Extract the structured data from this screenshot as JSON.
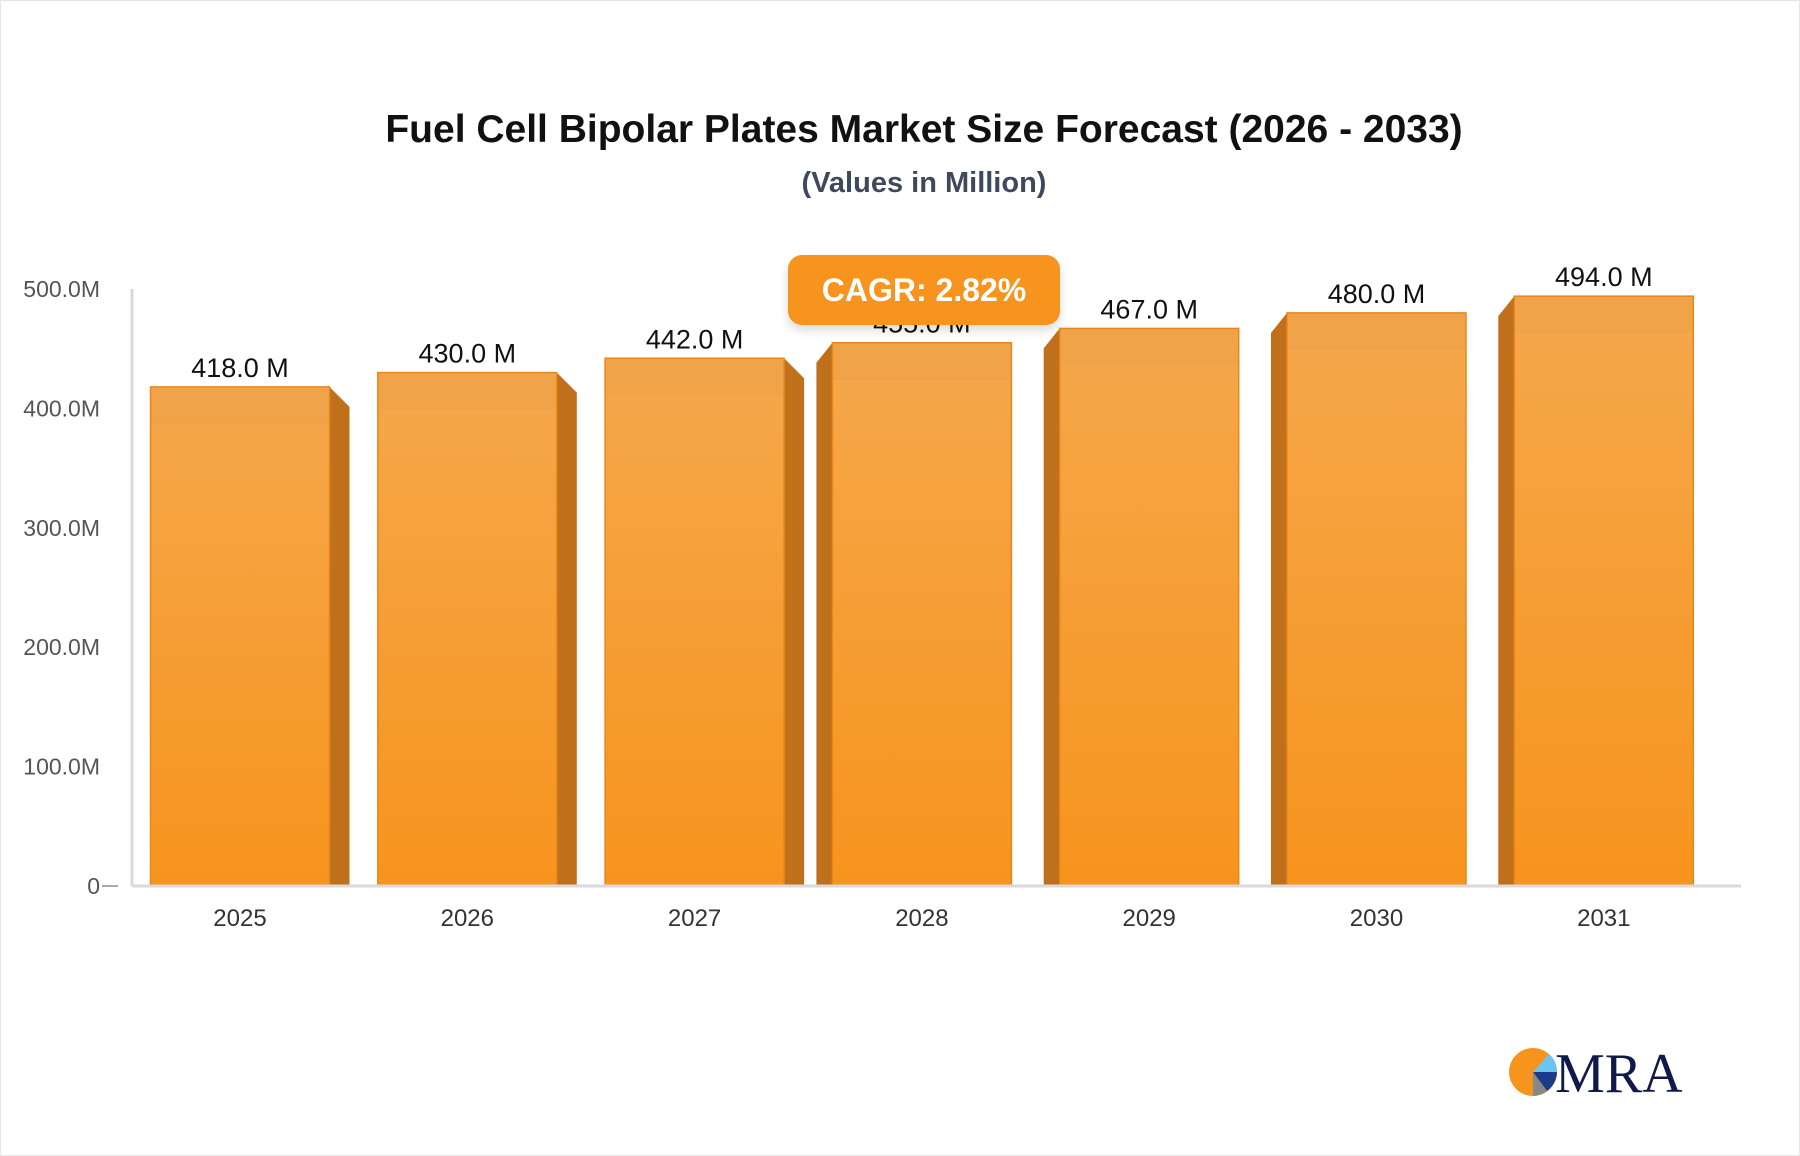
{
  "chart_data": {
    "type": "bar",
    "title": "Fuel Cell Bipolar Plates Market Size Forecast (2026 - 2033)",
    "subtitle": "(Values in Million)",
    "categories": [
      "2025",
      "2026",
      "2027",
      "2028",
      "2029",
      "2030",
      "2031"
    ],
    "values": [
      418.0,
      430.0,
      442.0,
      455.0,
      467.0,
      480.0,
      494.0
    ],
    "data_labels": [
      "418.0 M",
      "430.0 M",
      "442.0 M",
      "455.0 M",
      "467.0 M",
      "480.0 M",
      "494.0 M"
    ],
    "y_ticks": [
      {
        "value": 0,
        "label": "0"
      },
      {
        "value": 100,
        "label": "100.0M"
      },
      {
        "value": 200,
        "label": "200.0M"
      },
      {
        "value": 300,
        "label": "300.0M"
      },
      {
        "value": 400,
        "label": "400.0M"
      },
      {
        "value": 500,
        "label": "500.0M"
      }
    ],
    "ylim": [
      0,
      500
    ],
    "grid": false,
    "bar_color": "#f7941d",
    "bar_side_color": "#c0701a",
    "annotation": "CAGR: 2.82%"
  },
  "logo": {
    "text": "MRA"
  }
}
